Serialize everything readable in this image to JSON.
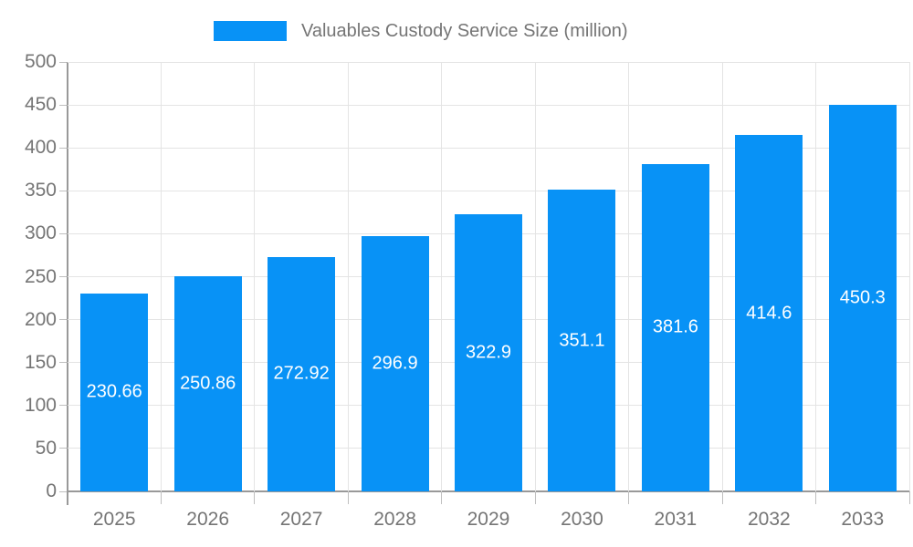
{
  "legend": {
    "label": "Valuables Custody Service Size (million)",
    "swatch_color": "#0892f6"
  },
  "chart_data": {
    "type": "bar",
    "title": "Valuables Custody Service Size (million)",
    "categories": [
      "2025",
      "2026",
      "2027",
      "2028",
      "2029",
      "2030",
      "2031",
      "2032",
      "2033"
    ],
    "values": [
      230.66,
      250.86,
      272.92,
      296.9,
      322.9,
      351.1,
      381.6,
      414.6,
      450.3
    ],
    "value_labels": [
      "230.66",
      "250.86",
      "272.92",
      "296.9",
      "322.9",
      "351.1",
      "381.6",
      "414.6",
      "450.3"
    ],
    "xlabel": "",
    "ylabel": "",
    "ylim": [
      0,
      500
    ],
    "y_tick_step": 50,
    "y_tick_labels": [
      "0",
      "50",
      "100",
      "150",
      "200",
      "250",
      "300",
      "350",
      "400",
      "450",
      "500"
    ],
    "grid": true,
    "legend_position": "top",
    "bar_color": "#0892f6",
    "bar_label_color": "#ffffff",
    "axis_text_color": "#757575",
    "gridline_color": "#e4e4e4",
    "axis_line_color": "#999999"
  }
}
